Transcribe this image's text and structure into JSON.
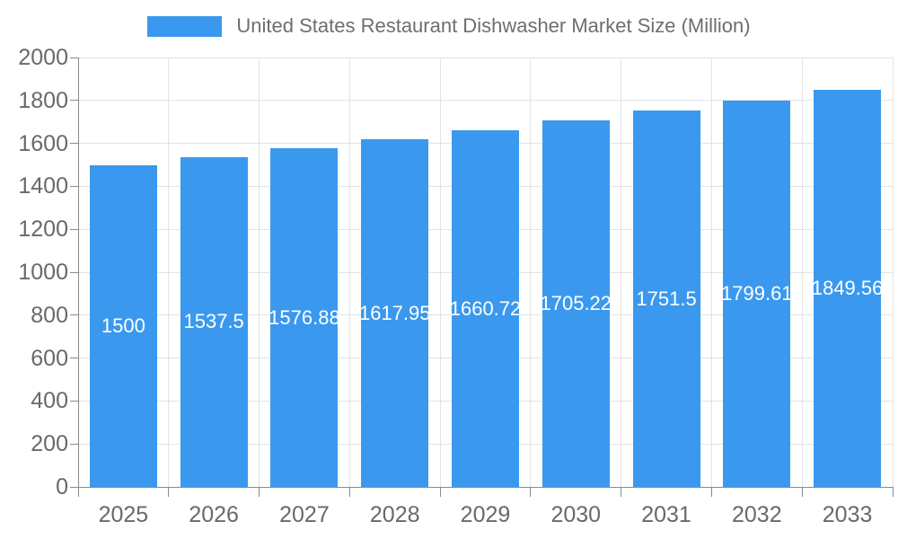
{
  "chart_data": {
    "type": "bar",
    "title": "United States Restaurant Dishwasher Market Size (Million)",
    "categories": [
      "2025",
      "2026",
      "2027",
      "2028",
      "2029",
      "2030",
      "2031",
      "2032",
      "2033"
    ],
    "values": [
      1500,
      1537.5,
      1576.88,
      1617.95,
      1660.72,
      1705.22,
      1751.5,
      1799.61,
      1849.56
    ],
    "value_labels": [
      "1500",
      "1537.5",
      "1576.88",
      "1617.95",
      "1660.72",
      "1705.22",
      "1751.5",
      "1799.61",
      "1849.56"
    ],
    "xlabel": "",
    "ylabel": "",
    "ylim": [
      0,
      2000
    ],
    "ytick_step": 200,
    "ytick_labels": [
      "0",
      "200",
      "400",
      "600",
      "800",
      "1000",
      "1200",
      "1400",
      "1600",
      "1800",
      "2000"
    ],
    "grid": true,
    "legend_position": "top",
    "colors": {
      "bar": "#3a99ee",
      "bar_label": "#ffffff",
      "grid": "#e3e3e3",
      "axis": "#8a8a8a",
      "tick_label": "#696969",
      "title": "#6e6e6e",
      "background": "#ffffff"
    }
  }
}
